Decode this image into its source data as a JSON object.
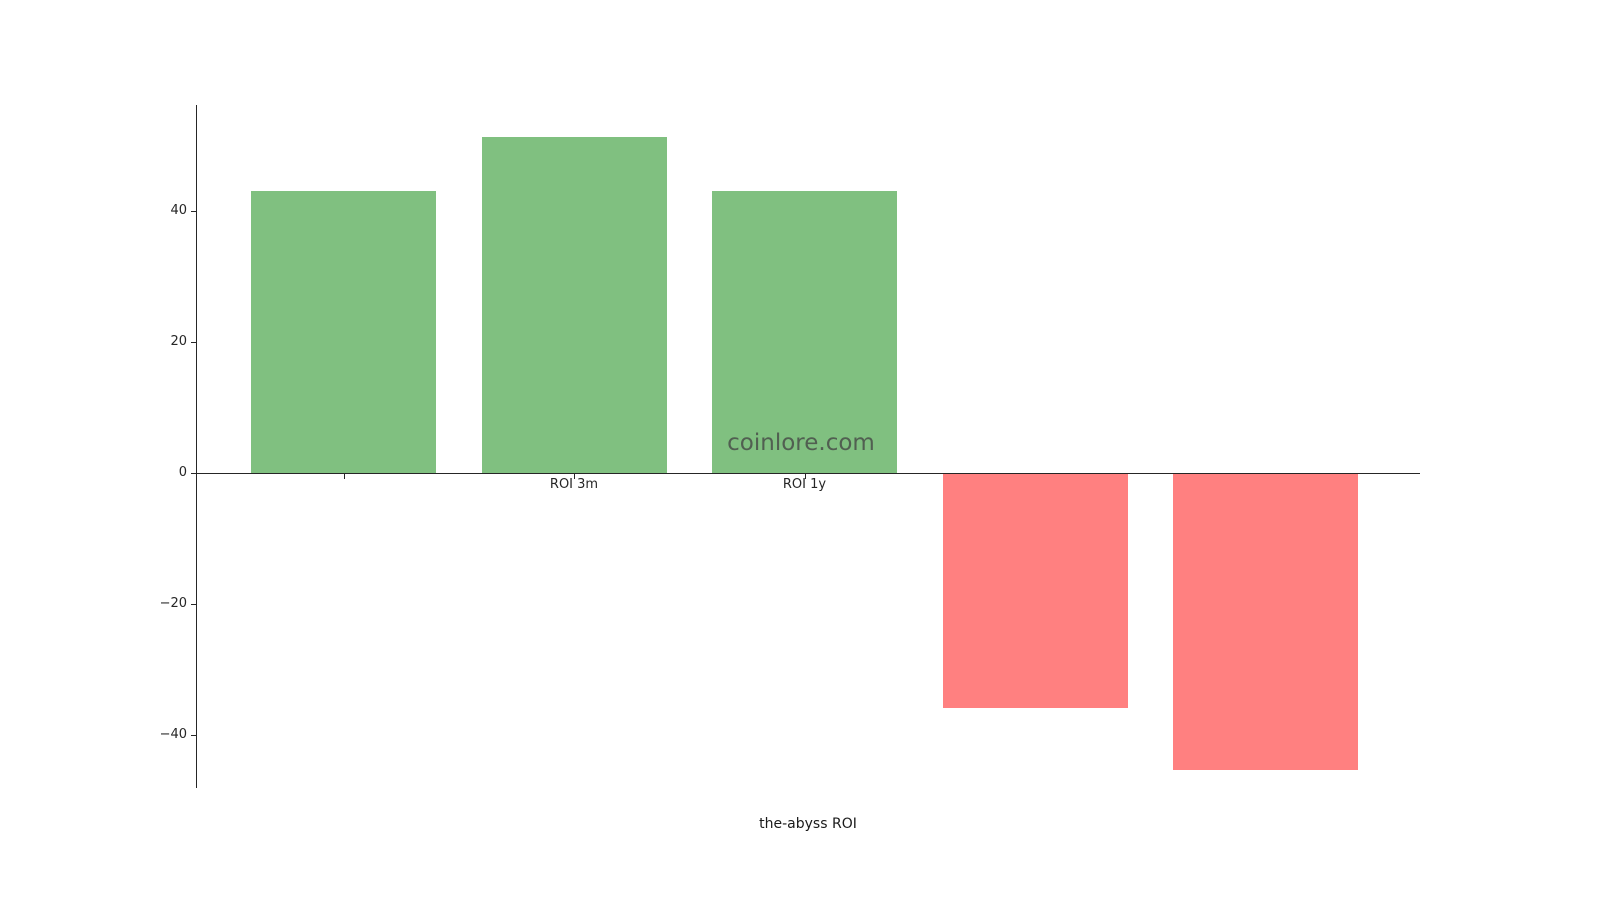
{
  "watermark": {
    "text": "coinlore.com",
    "color": "#444444"
  },
  "chart_data": {
    "type": "bar",
    "title": "",
    "xlabel": "the-abyss ROI",
    "ylabel": "",
    "categories": [
      "",
      "ROI 3m",
      "ROI 1y",
      "",
      ""
    ],
    "values": [
      43,
      51.3,
      43,
      -35.7,
      -45.2
    ],
    "positive_color": "#80c080",
    "negative_color": "#ff8080",
    "axis_color": "#262626",
    "y_ticks": [
      40,
      20,
      0,
      -20,
      -40
    ],
    "y_tick_labels": [
      "40",
      "20",
      "0",
      "−20",
      "−40"
    ],
    "ylim": [
      -48,
      56
    ],
    "grid": false,
    "legend": "none"
  }
}
